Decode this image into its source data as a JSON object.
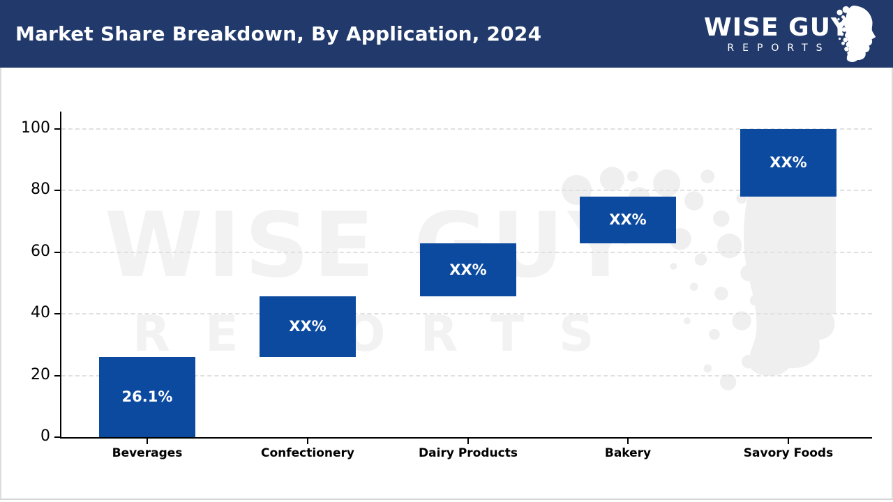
{
  "header": {
    "title": "Market Share Breakdown, By Application, 2024",
    "logo_line1": "WISE GUY",
    "logo_line2": "REPORTS"
  },
  "watermark": {
    "line1": "WISE GUY",
    "line2": "REPORTS"
  },
  "colors": {
    "header_bg": "#213a6b",
    "bar": "#0c4aa0",
    "bar_label": "#ffffff",
    "grid": "#e0e0e0",
    "axis": "#000000",
    "title_text": "#ffffff",
    "card_border": "#dcdcdc",
    "watermark": "#f2f2f2"
  },
  "chart_data": {
    "type": "bar",
    "subtype": "floating-waterfall",
    "title": "Market Share Breakdown, By Application, 2024",
    "categories": [
      "Beverages",
      "Confectionery",
      "Dairy Products",
      "Bakery",
      "Savory Foods"
    ],
    "segments": [
      {
        "category": "Beverages",
        "start": 0,
        "end": 26.1,
        "label": "26.1%"
      },
      {
        "category": "Confectionery",
        "start": 26.1,
        "end": 45.7,
        "label": "XX%"
      },
      {
        "category": "Dairy Products",
        "start": 45.7,
        "end": 62.9,
        "label": "XX%"
      },
      {
        "category": "Bakery",
        "start": 62.9,
        "end": 78.1,
        "label": "XX%"
      },
      {
        "category": "Savory Foods",
        "start": 78.1,
        "end": 100,
        "label": "XX%"
      }
    ],
    "yticks": [
      0,
      20,
      40,
      60,
      80,
      100
    ],
    "ylim": [
      0,
      105.7
    ],
    "xlabel": "",
    "ylabel": "",
    "grid": "horizontal-dashed",
    "legend": "none"
  }
}
